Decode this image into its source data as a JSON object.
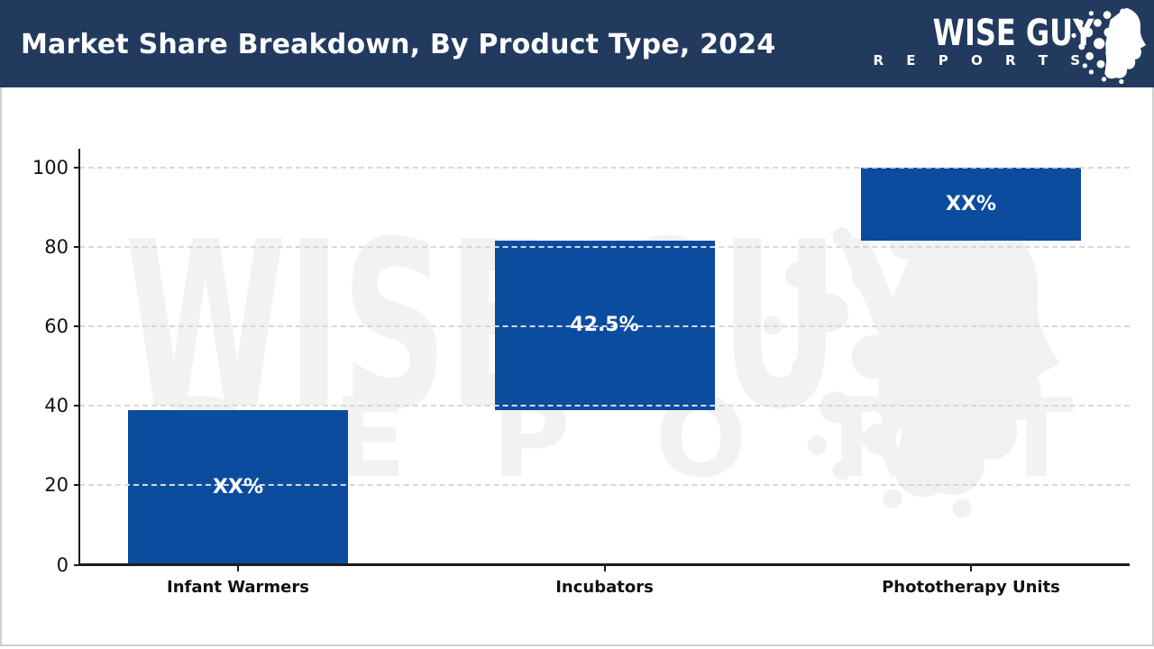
{
  "header": {
    "title": "Market Share Breakdown, By Product Type, 2024",
    "logo": {
      "wordmark": "WISE GUY",
      "subtext": "R E P O R T S"
    }
  },
  "watermark": {
    "wordmark": "WISE GUY",
    "subtext": "R E P O R T S"
  },
  "chart_data": {
    "type": "bar",
    "subtype": "waterfall",
    "title": "Market Share Breakdown, By Product Type, 2024",
    "categories": [
      "Infant Warmers",
      "Incubators",
      "Phototherapy Units"
    ],
    "bars": [
      {
        "category": "Infant Warmers",
        "base": 0,
        "top": 39,
        "label": "XX%"
      },
      {
        "category": "Incubators",
        "base": 39,
        "top": 81.5,
        "label": "42.5%"
      },
      {
        "category": "Phototherapy Units",
        "base": 81.5,
        "top": 100,
        "label": "XX%"
      }
    ],
    "xlabel": "",
    "ylabel": "",
    "ylim": [
      0,
      100
    ],
    "yticks": [
      0,
      20,
      40,
      60,
      80,
      100
    ],
    "grid": "dashed-horizontal",
    "legend": "none",
    "colors": {
      "bar": "#0b4c9f",
      "bar_label": "#ffffff",
      "grid": "#d8d8d8",
      "axis": "#1c1c1c",
      "tick_label": "#111111",
      "header_bg": "#233a5f",
      "watermark": "#f2f2f2"
    }
  }
}
